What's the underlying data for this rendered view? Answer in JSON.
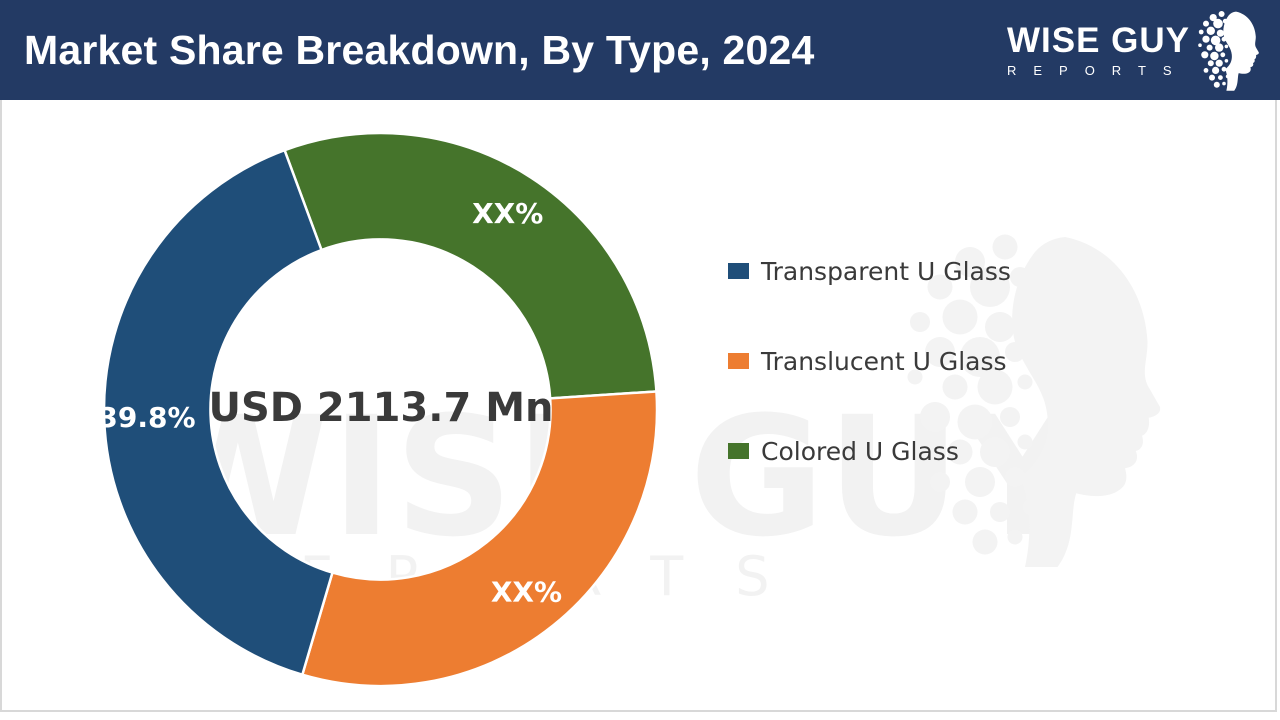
{
  "header": {
    "title": "Market Share Breakdown, By Type, 2024",
    "background_color": "#233A64",
    "logo": {
      "brand": "WISE GUY",
      "reports": "REPORTS"
    }
  },
  "watermark": {
    "brand": "WISE GUY",
    "reports": "REPORTS"
  },
  "chart_data": {
    "type": "pie",
    "title": "Market Share Breakdown, By Type, 2024",
    "donut": true,
    "center_label": "USD 2113.7 Mn",
    "inner_radius_ratio": 0.615,
    "start_angle_deg_from_top": -20.3,
    "direction": "counterclockwise",
    "legend_position": "right",
    "gap_color": "#ffffff",
    "series": [
      {
        "name": "Transparent U Glass",
        "value": 39.8,
        "label": "39.8%",
        "color": "#1F4E79"
      },
      {
        "name": "Translucent U Glass",
        "value": 30.6,
        "label": "XX%",
        "color": "#ED7D31"
      },
      {
        "name": "Colored U Glass",
        "value": 29.6,
        "label": "XX%",
        "color": "#45742B"
      }
    ]
  }
}
